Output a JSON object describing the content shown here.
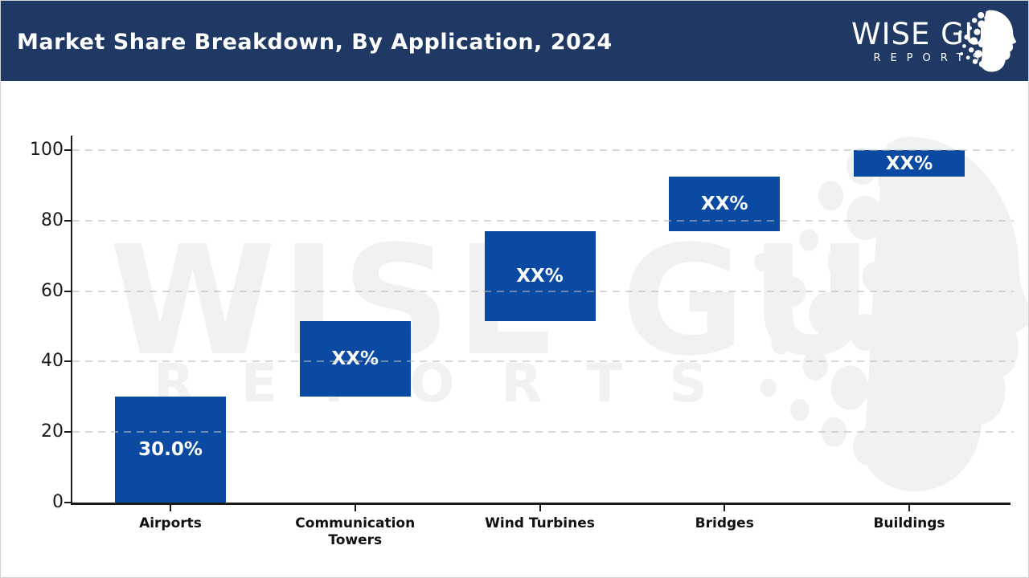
{
  "header": {
    "title": "Market Share Breakdown, By Application, 2024",
    "logo": {
      "line1": "WISE GUY",
      "line2": "REPORTS",
      "face_icon": "dotted-face-profile"
    }
  },
  "watermark": {
    "line1": "WISE GUY",
    "line2": "REPORTS",
    "face_icon": "dotted-face-profile"
  },
  "chart_data": {
    "type": "bar",
    "subtype": "waterfall",
    "title": "Market Share Breakdown, By Application, 2024",
    "categories": [
      "Airports",
      "Communication\nTowers",
      "Wind Turbines",
      "Bridges",
      "Buildings"
    ],
    "series": [
      {
        "name": "Market Share",
        "segments": [
          {
            "category": "Airports",
            "start": 0,
            "end": 30.0,
            "label": "30.0%"
          },
          {
            "category": "Communication Towers",
            "start": 30.0,
            "end": 51.4,
            "label": "XX%"
          },
          {
            "category": "Wind Turbines",
            "start": 51.4,
            "end": 77.1,
            "label": "XX%"
          },
          {
            "category": "Bridges",
            "start": 77.1,
            "end": 92.4,
            "label": "XX%"
          },
          {
            "category": "Buildings",
            "start": 92.4,
            "end": 100.0,
            "label": "XX%"
          }
        ]
      }
    ],
    "xlabel": "",
    "ylabel": "",
    "ylim": [
      0,
      104
    ],
    "yticks": [
      0,
      20,
      40,
      60,
      80,
      100
    ],
    "grid": "horizontal-dashed",
    "legend": "none"
  },
  "colors": {
    "header_bg": "#1f3864",
    "bar": "#0b4aa2",
    "bar_label": "#ffffff",
    "axis": "#1a1a1a",
    "grid": "#dcdcdc",
    "watermark": "#f1f1f4",
    "page_bg": "#ffffff"
  }
}
